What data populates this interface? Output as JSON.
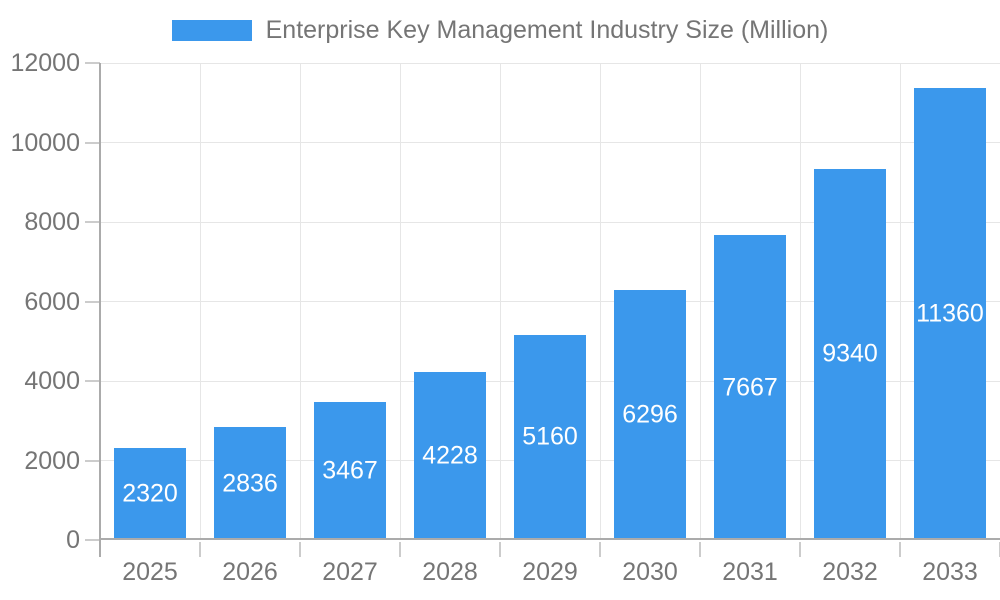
{
  "chart_data": {
    "type": "bar",
    "title": "Enterprise Key Management Industry Size (Million)",
    "categories": [
      "2025",
      "2026",
      "2027",
      "2028",
      "2029",
      "2030",
      "2031",
      "2032",
      "2033"
    ],
    "values": [
      2320,
      2836,
      3467,
      4228,
      5160,
      6296,
      7667,
      9340,
      11360
    ],
    "value_labels": [
      "2320",
      "2836",
      "3467",
      "4228",
      "5160",
      "6296",
      "7667",
      "9340",
      "11360"
    ],
    "yticks": [
      0,
      2000,
      4000,
      6000,
      8000,
      10000,
      12000
    ],
    "ytick_labels": [
      "0",
      "2000",
      "4000",
      "6000",
      "8000",
      "10000",
      "12000"
    ],
    "ylim": [
      0,
      12000
    ],
    "xlabel": "",
    "ylabel": "",
    "grid": true,
    "legend_position": "top",
    "colors": {
      "bar": "#3B98EC",
      "grid": "#E6E6E6",
      "axis": "#ABABAB",
      "minor_tick": "#CCCCCC",
      "text": "#757575",
      "value_text": "#FFFFFF",
      "background": "#FFFFFF"
    }
  }
}
